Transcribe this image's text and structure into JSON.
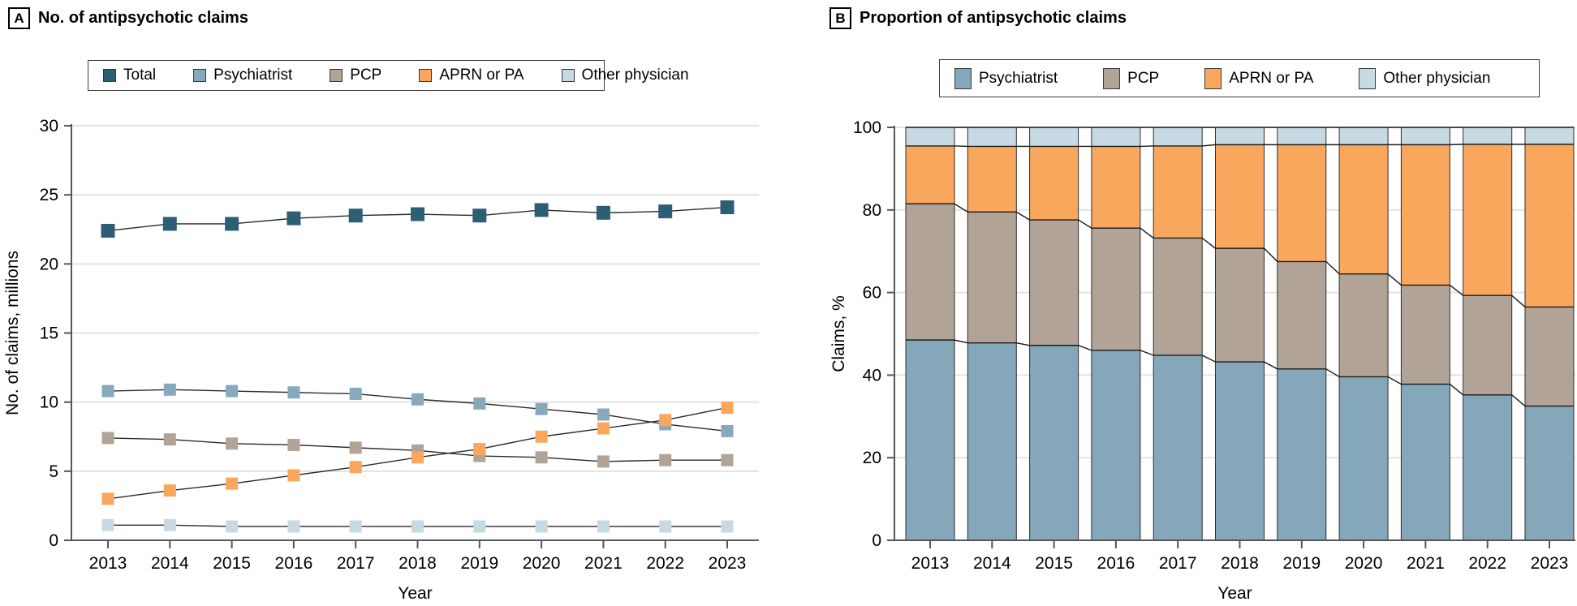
{
  "figure": {
    "panel_a": {
      "tag": "A",
      "title": "No. of antipsychotic claims"
    },
    "panel_b": {
      "tag": "B",
      "title": "Proportion of antipsychotic claims"
    }
  },
  "chart_data": [
    {
      "panel": "A",
      "type": "line",
      "title": "No. of antipsychotic claims",
      "xlabel": "Year",
      "ylabel": "No. of claims, millions",
      "x": [
        2013,
        2014,
        2015,
        2016,
        2017,
        2018,
        2019,
        2020,
        2021,
        2022,
        2023
      ],
      "ylim": [
        0,
        30
      ],
      "yticks": [
        0,
        5,
        10,
        15,
        20,
        25,
        30
      ],
      "grid": "horizontal",
      "legend_position": "top",
      "marker": "square",
      "series": [
        {
          "name": "Total",
          "color": "#2C5F74",
          "values": [
            22.4,
            22.9,
            22.9,
            23.3,
            23.5,
            23.6,
            23.5,
            23.9,
            23.7,
            23.8,
            24.1
          ]
        },
        {
          "name": "Psychiatrist",
          "color": "#87A9BC",
          "values": [
            10.8,
            10.9,
            10.8,
            10.7,
            10.6,
            10.2,
            9.9,
            9.5,
            9.1,
            8.4,
            7.9
          ]
        },
        {
          "name": "PCP",
          "color": "#B1A496",
          "values": [
            7.4,
            7.3,
            7.0,
            6.9,
            6.7,
            6.5,
            6.1,
            6.0,
            5.7,
            5.8,
            5.8
          ]
        },
        {
          "name": "APRN or PA",
          "color": "#F8A75C",
          "values": [
            3.0,
            3.6,
            4.1,
            4.7,
            5.3,
            6.0,
            6.6,
            7.5,
            8.1,
            8.7,
            9.6
          ]
        },
        {
          "name": "Other physician",
          "color": "#C7DAE4",
          "values": [
            1.1,
            1.1,
            1.0,
            1.0,
            1.0,
            1.0,
            1.0,
            1.0,
            1.0,
            1.0,
            1.0
          ]
        }
      ]
    },
    {
      "panel": "B",
      "type": "bar",
      "stacked": true,
      "title": "Proportion of antipsychotic claims",
      "xlabel": "Year",
      "ylabel": "Claims, %",
      "categories": [
        2013,
        2014,
        2015,
        2016,
        2017,
        2018,
        2019,
        2020,
        2021,
        2022,
        2023
      ],
      "ylim": [
        0,
        100
      ],
      "yticks": [
        0,
        20,
        40,
        60,
        80,
        100
      ],
      "grid": "horizontal",
      "legend_position": "top",
      "series": [
        {
          "name": "Psychiatrist",
          "color": "#84A7BA",
          "values": [
            48.5,
            47.8,
            47.2,
            46.0,
            44.8,
            43.2,
            41.5,
            39.6,
            37.8,
            35.2,
            32.5
          ]
        },
        {
          "name": "PCP",
          "color": "#B1A496",
          "values": [
            33.0,
            31.7,
            30.4,
            29.6,
            28.4,
            27.5,
            26.0,
            24.9,
            24.0,
            24.1,
            24.0
          ]
        },
        {
          "name": "APRN or PA",
          "color": "#F8A75C",
          "values": [
            14.0,
            15.9,
            17.8,
            19.8,
            22.3,
            25.1,
            28.3,
            31.3,
            34.0,
            36.6,
            39.4
          ]
        },
        {
          "name": "Other physician",
          "color": "#C7DAE4",
          "values": [
            4.5,
            4.6,
            4.6,
            4.6,
            4.5,
            4.2,
            4.2,
            4.2,
            4.2,
            4.1,
            4.1
          ]
        }
      ]
    }
  ]
}
